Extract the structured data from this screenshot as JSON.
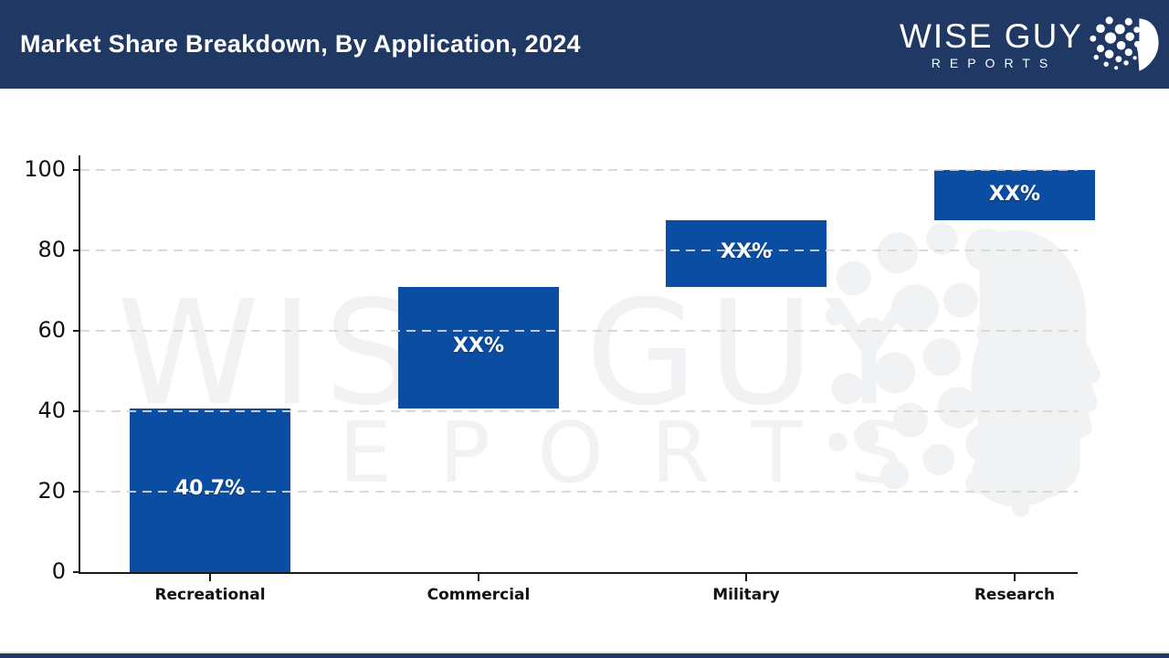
{
  "header": {
    "title": "Market Share Breakdown, By Application, 2024",
    "logo": {
      "line1": "WISE GUY",
      "line2": "REPORTS"
    }
  },
  "watermark": {
    "line1": "WISE GUY",
    "line2": "REPORTS"
  },
  "colors": {
    "header_background": "#1F3864",
    "bar_color": "#0B4DA2",
    "gridline_color": "#d6d6d6",
    "watermark_color": "#f1f2f4"
  },
  "chart_data": {
    "type": "bar",
    "subtype": "waterfall",
    "title": "Market Share Breakdown, By Application, 2024",
    "categories": [
      "Recreational",
      "Commercial",
      "Military",
      "Research"
    ],
    "segments": [
      {
        "category": "Recreational",
        "start": 0,
        "end": 40.7,
        "increment": 40.7,
        "label": "40.7%"
      },
      {
        "category": "Commercial",
        "start": 40.7,
        "end": 71.0,
        "increment": 30.3,
        "label": "XX%"
      },
      {
        "category": "Military",
        "start": 71.0,
        "end": 87.5,
        "increment": 16.5,
        "label": "XX%"
      },
      {
        "category": "Research",
        "start": 87.5,
        "end": 100,
        "increment": 12.5,
        "label": "XX%"
      }
    ],
    "y_ticks": [
      0,
      20,
      40,
      60,
      80,
      100
    ],
    "ylim": [
      0,
      104
    ],
    "xlabel": "",
    "ylabel": "",
    "grid": "horizontal-dashed",
    "legend": "none",
    "bar_color": "#0B4DA2"
  }
}
